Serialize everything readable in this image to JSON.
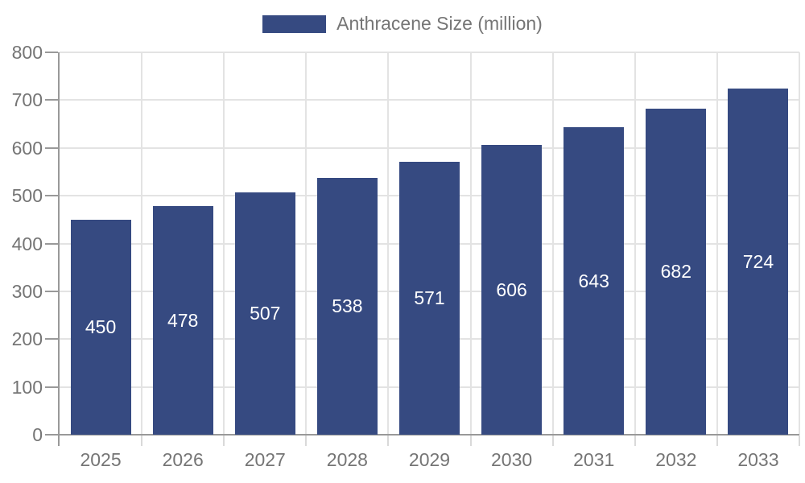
{
  "legend": {
    "label": "Anthracene Size (million)"
  },
  "chart_data": {
    "type": "bar",
    "title": "",
    "categories": [
      "2025",
      "2026",
      "2027",
      "2028",
      "2029",
      "2030",
      "2031",
      "2032",
      "2033"
    ],
    "series": [
      {
        "name": "Anthracene Size (million)",
        "values": [
          450,
          478,
          507,
          538,
          571,
          606,
          643,
          682,
          724
        ]
      }
    ],
    "xlabel": "",
    "ylabel": "",
    "ylim": [
      0,
      800
    ],
    "ytick_step": 100,
    "yticks": [
      0,
      100,
      200,
      300,
      400,
      500,
      600,
      700,
      800
    ],
    "grid": true,
    "legend_position": "top-center",
    "value_labels_position": "inside-center"
  },
  "colors": {
    "bar": "#364A81",
    "axis": "#999999",
    "grid": "#E3E3E3",
    "x_tick": "#D9D9D9",
    "text": "#757575",
    "value_label": "#FFFFFF",
    "background": "#FFFFFF"
  }
}
